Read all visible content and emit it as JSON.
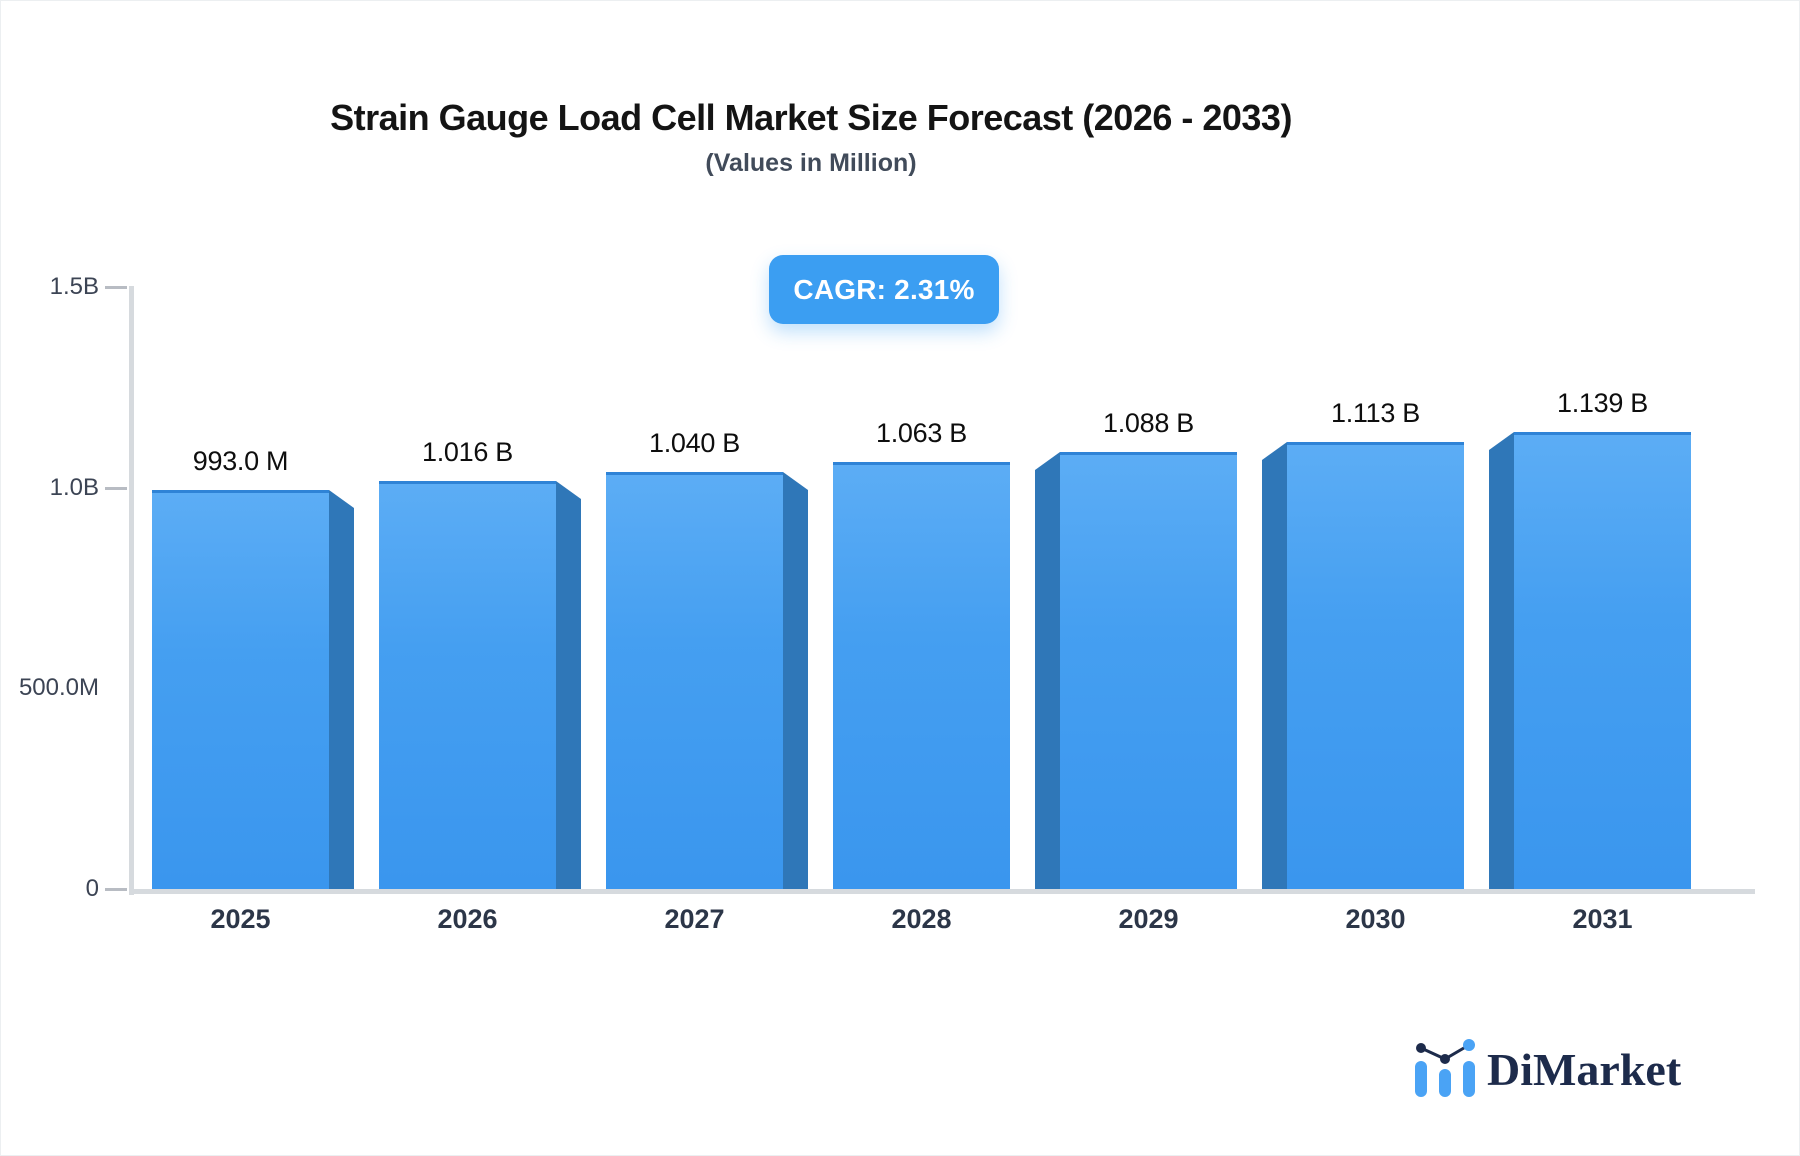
{
  "header": {
    "title": "Strain Gauge Load Cell Market Size Forecast (2026 - 2033)",
    "subtitle": "(Values in Million)",
    "cagr_badge": "CAGR: 2.31%"
  },
  "chart_data": {
    "type": "bar",
    "title": "Strain Gauge Load Cell Market Size Forecast (2026 - 2033)",
    "subtitle": "(Values in Million)",
    "annotation": "CAGR: 2.31%",
    "categories": [
      "2025",
      "2026",
      "2027",
      "2028",
      "2029",
      "2030",
      "2031"
    ],
    "values_in_millions": [
      993.0,
      1016,
      1040,
      1063,
      1088,
      1113,
      1139
    ],
    "value_labels": [
      "993.0 M",
      "1.016 B",
      "1.040 B",
      "1.063 B",
      "1.088 B",
      "1.113 B",
      "1.139 B"
    ],
    "y_axis": {
      "max_millions": 1500,
      "ticks": [
        {
          "label": "1.5B",
          "value_m": 1500,
          "dash": true
        },
        {
          "label": "1.0B",
          "value_m": 1000,
          "dash": true
        },
        {
          "label": "500.0M",
          "value_m": 500,
          "dash": false
        },
        {
          "label": "0",
          "value_m": 0,
          "dash": true
        }
      ]
    },
    "legend": null,
    "grid": false,
    "bar_colors": {
      "face_top": "#5cadf5",
      "face_bottom": "#3a96ee",
      "face_edge": "#2f83d6",
      "side": "#2f77b8",
      "badge": "#3b9ef2"
    }
  },
  "branding": {
    "name": "DiMarket",
    "icon": "bar-line-chart-logo-icon",
    "text_color": "#1d2b4b",
    "icon_bar_color": "#4aa3f5",
    "icon_dot_color": "#1d2b4b"
  }
}
